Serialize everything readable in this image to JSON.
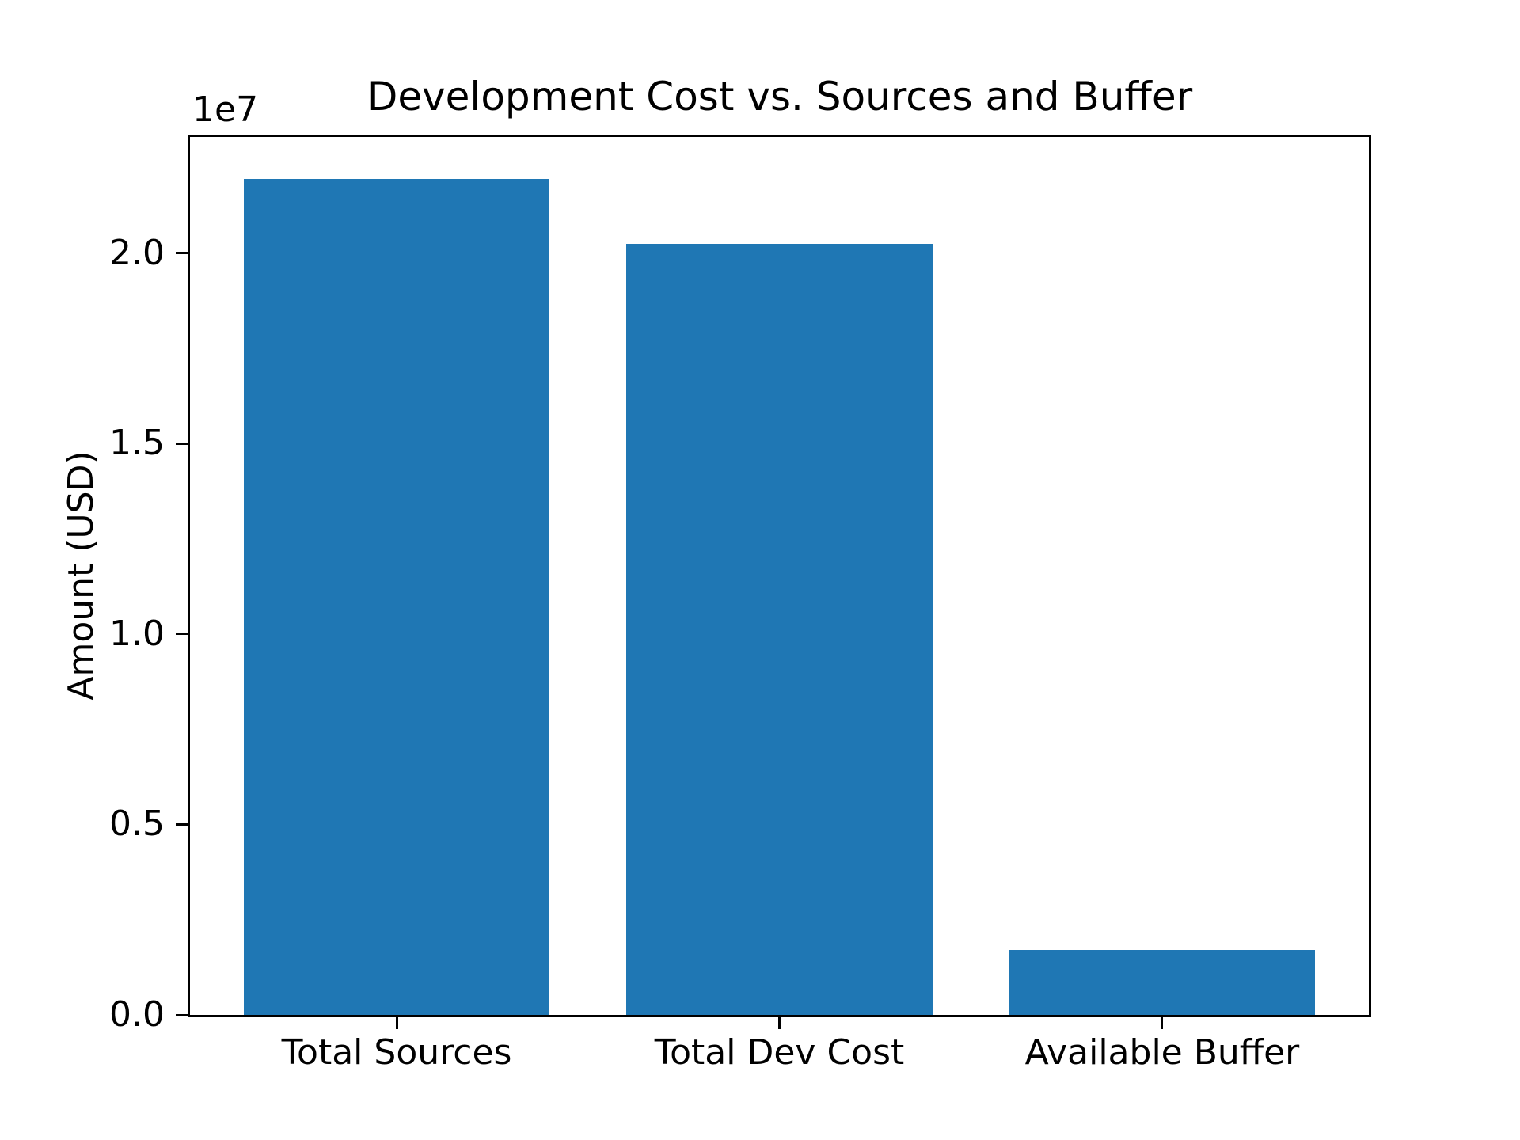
{
  "chart_data": {
    "type": "bar",
    "title": "Development Cost vs. Sources and Buffer",
    "xlabel": "",
    "ylabel": "Amount (USD)",
    "y_offset_label": "1e7",
    "categories": [
      "Total Sources",
      "Total Dev Cost",
      "Available Buffer"
    ],
    "values": [
      21950000,
      20250000,
      1700000
    ],
    "bar_color": "#1f77b4",
    "background_color": "#ffffff",
    "text_color": "#000000",
    "bar_width": 0.8,
    "xlim": [
      -0.54,
      2.54
    ],
    "ylim": [
      0,
      23047500
    ],
    "yticks": {
      "values": [
        0,
        5000000,
        10000000,
        15000000,
        20000000
      ],
      "labels": [
        "0.0",
        "0.5",
        "1.0",
        "1.5",
        "2.0"
      ]
    },
    "grid": false,
    "legend": "none"
  }
}
